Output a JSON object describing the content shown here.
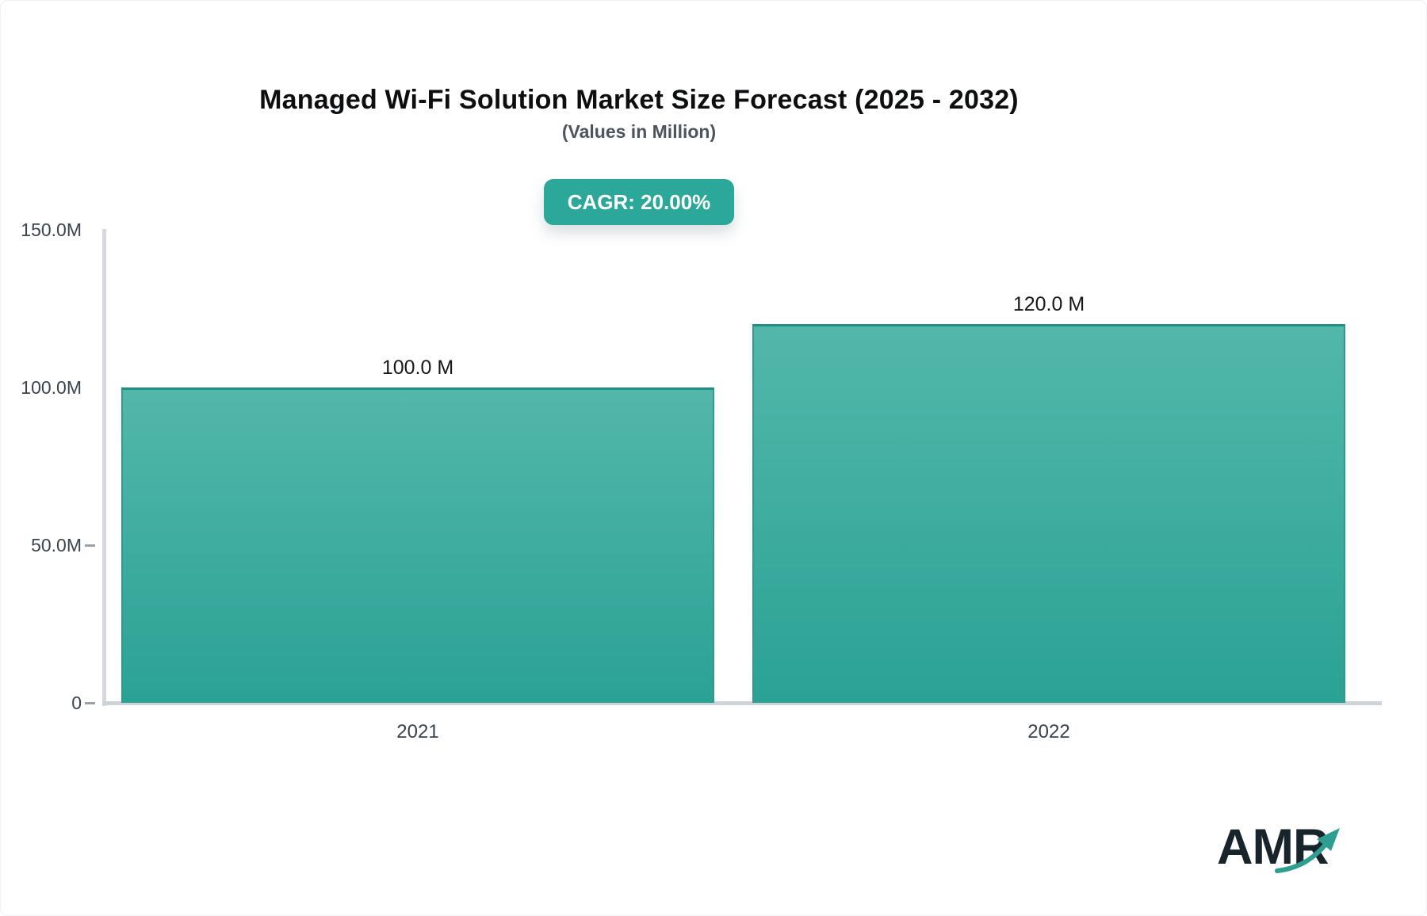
{
  "header": {
    "title": "Managed Wi-Fi Solution Market Size Forecast (2025 - 2032)",
    "subtitle": "(Values in Million)",
    "cagr_badge": "CAGR: 20.00%"
  },
  "chart_data": {
    "type": "bar",
    "title": "Managed Wi-Fi Solution Market Size Forecast (2025 - 2032)",
    "subtitle": "(Values in Million)",
    "unit": "Million (M)",
    "categories": [
      "2021",
      "2022"
    ],
    "values": [
      100.0,
      120.0
    ],
    "bar_labels": [
      "100.0 M",
      "120.0 M"
    ],
    "cagr": "20.00%",
    "ylim": [
      0,
      150
    ],
    "yticks": [
      {
        "label": "150.0M",
        "value": 150
      },
      {
        "label": "100.0M",
        "value": 100
      },
      {
        "label": "50.0M",
        "value": 50
      },
      {
        "label": "0",
        "value": 0
      }
    ],
    "grid": false,
    "legend": "none",
    "bar_gradient_top": "#53b7ab",
    "bar_gradient_bottom": "#2aa294",
    "bar_border": "#27968a"
  },
  "branding": {
    "logo_text": "AMR",
    "logo_arrow_icon": "trend-up-arrow",
    "logo_text_color": "#18242c",
    "logo_arrow_color": "#2e9d92"
  },
  "colors": {
    "accent": "#2ca89b",
    "badge_text": "#ffffff",
    "axis_line": "#d3d6db",
    "tick_text": "#3b4450",
    "value_label_text": "#15181b",
    "title_text": "#0c0e10",
    "subtitle_text": "#4a5560"
  }
}
